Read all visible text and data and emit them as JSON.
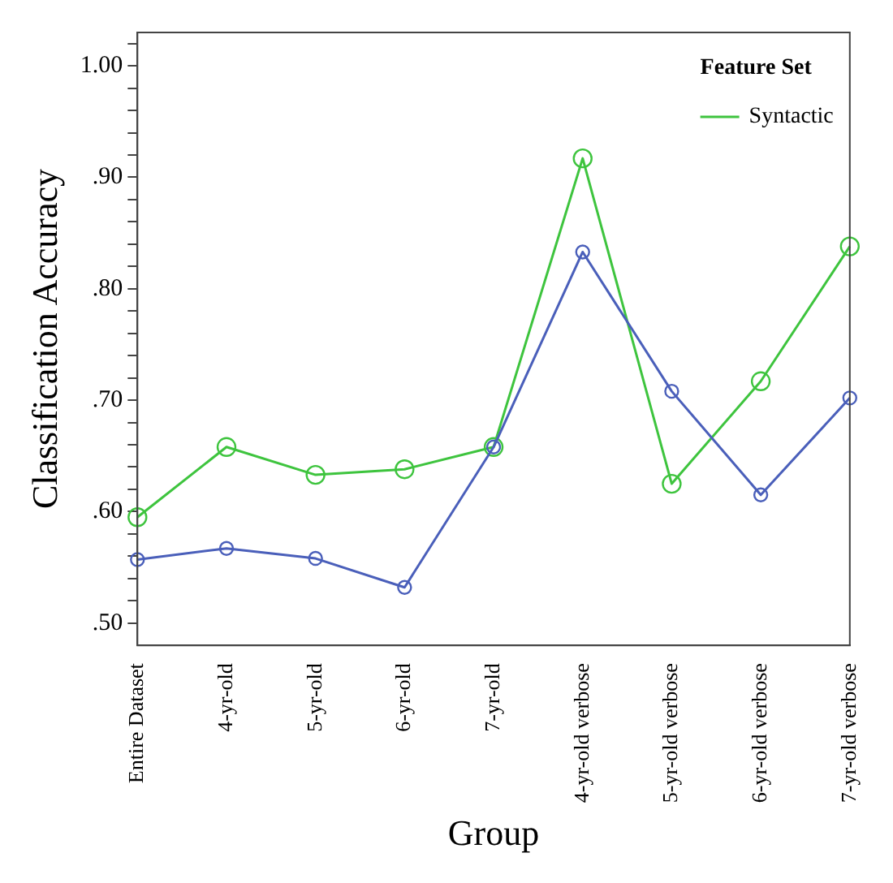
{
  "chart_data": {
    "type": "line",
    "xlabel": "Group",
    "ylabel": "Classification Accuracy",
    "legend_title": "Feature Set",
    "legend": "top right",
    "marker": "circle",
    "grid": false,
    "categories": [
      "Entire Dataset",
      "4-yr-old",
      "5-yr-old",
      "6-yr-old",
      "7-yr-old",
      "4-yr-old verbose",
      "5-yr-old verbose",
      "6-yr-old verbose",
      "7-yr-old verbose"
    ],
    "ylim": [
      0.48,
      1.03
    ],
    "yticks": [
      {
        "value": 0.5,
        "label": ".50"
      },
      {
        "value": 0.52,
        "label": null
      },
      {
        "value": 0.54,
        "label": null
      },
      {
        "value": 0.56,
        "label": null
      },
      {
        "value": 0.58,
        "label": null
      },
      {
        "value": 0.6,
        "label": ".60"
      },
      {
        "value": 0.62,
        "label": null
      },
      {
        "value": 0.64,
        "label": null
      },
      {
        "value": 0.66,
        "label": null
      },
      {
        "value": 0.68,
        "label": null
      },
      {
        "value": 0.7,
        "label": ".70"
      },
      {
        "value": 0.72,
        "label": null
      },
      {
        "value": 0.74,
        "label": null
      },
      {
        "value": 0.76,
        "label": null
      },
      {
        "value": 0.78,
        "label": null
      },
      {
        "value": 0.8,
        "label": ".80"
      },
      {
        "value": 0.82,
        "label": null
      },
      {
        "value": 0.84,
        "label": null
      },
      {
        "value": 0.86,
        "label": null
      },
      {
        "value": 0.88,
        "label": null
      },
      {
        "value": 0.9,
        "label": ".90"
      },
      {
        "value": 0.92,
        "label": null
      },
      {
        "value": 0.94,
        "label": null
      },
      {
        "value": 0.96,
        "label": null
      },
      {
        "value": 0.98,
        "label": null
      },
      {
        "value": 1.0,
        "label": "1.00"
      },
      {
        "value": 1.02,
        "label": null
      }
    ],
    "series": [
      {
        "color": "#4a5fba",
        "values": [
          0.557,
          0.567,
          0.558,
          0.532,
          0.658,
          0.833,
          0.708,
          0.615,
          0.702
        ]
      },
      {
        "name": "Syntactic",
        "color": "#3ec43e",
        "values": [
          0.595,
          0.658,
          0.633,
          0.638,
          0.658,
          0.917,
          0.625,
          0.717,
          0.838
        ]
      }
    ]
  }
}
